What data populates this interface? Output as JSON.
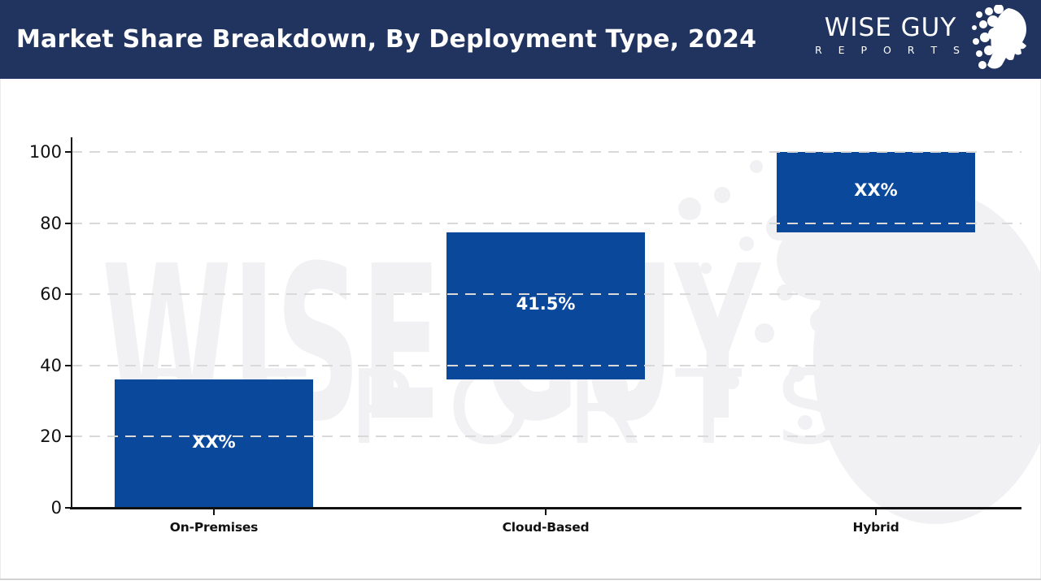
{
  "header": {
    "title": "Market Share Breakdown, By Deployment Type, 2024",
    "logo": {
      "line1": "WISE GUY",
      "line2": "R E P O R T S"
    }
  },
  "watermark": {
    "line1": "WISE GUY",
    "line2": "R E P O R T S"
  },
  "chart_data": {
    "type": "bar",
    "subtype": "floating-segment-waterfall",
    "title": "Market Share Breakdown, By Deployment Type, 2024",
    "categories": [
      "On-Premises",
      "Cloud-Based",
      "Hybrid"
    ],
    "segments": [
      {
        "category": "On-Premises",
        "start": 0,
        "end": 36,
        "label": "XX%"
      },
      {
        "category": "Cloud-Based",
        "start": 36,
        "end": 77.5,
        "label": "41.5%"
      },
      {
        "category": "Hybrid",
        "start": 77.5,
        "end": 100,
        "label": "XX%"
      }
    ],
    "yticks": [
      0,
      20,
      40,
      60,
      80,
      100
    ],
    "ylim": [
      0,
      104
    ],
    "xlabel": "",
    "ylabel": "",
    "grid": "horizontal-dashed-over-bars",
    "legend": "none",
    "bar_color": "#0a489c",
    "value_label_color": "#ffffff"
  },
  "colors": {
    "header_bg": "#21345f",
    "bar": "#0a489c",
    "grid": "#d9d9d9",
    "axis": "#111111",
    "watermark": "#f1f1f4"
  }
}
